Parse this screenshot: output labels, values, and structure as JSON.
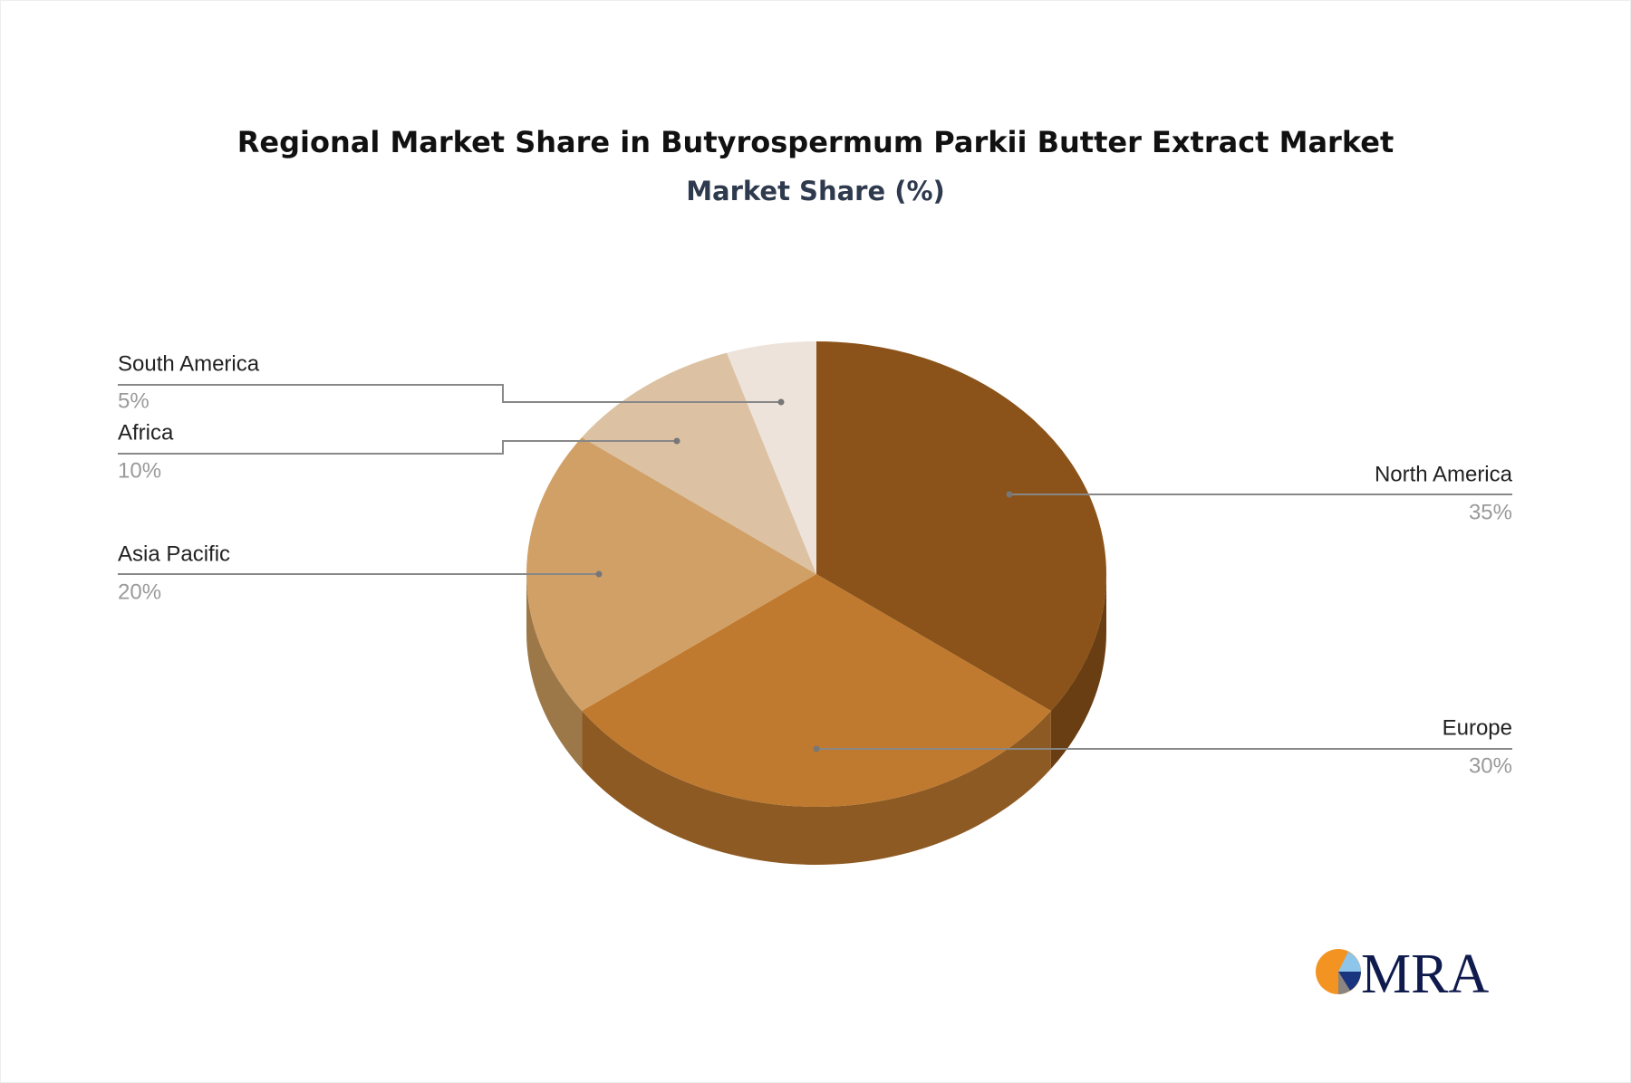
{
  "chart_data": {
    "type": "pie",
    "style": "3d",
    "title": "Regional Market Share in Butyrospermum Parkii Butter Extract Market",
    "subtitle": "Market Share (%)",
    "legend": "none (leader-line labels)",
    "slices": [
      {
        "label": "North America",
        "value": 35,
        "display": "35%",
        "color": "#8b5319",
        "side_color": "#6a3e13"
      },
      {
        "label": "Europe",
        "value": 30,
        "display": "30%",
        "color": "#bf7a2f",
        "side_color": "#8d5a23"
      },
      {
        "label": "Asia Pacific",
        "value": 20,
        "display": "20%",
        "color": "#d1a066",
        "side_color": "#9c7848"
      },
      {
        "label": "Africa",
        "value": 10,
        "display": "10%",
        "color": "#dcc2a3",
        "side_color": "#a8927a"
      },
      {
        "label": "South America",
        "value": 5,
        "display": "5%",
        "color": "#ede3db",
        "side_color": "#b5aca5"
      }
    ]
  },
  "logo": {
    "text": "MRA",
    "color": "#0f1a4d",
    "accent": "#f39422"
  }
}
